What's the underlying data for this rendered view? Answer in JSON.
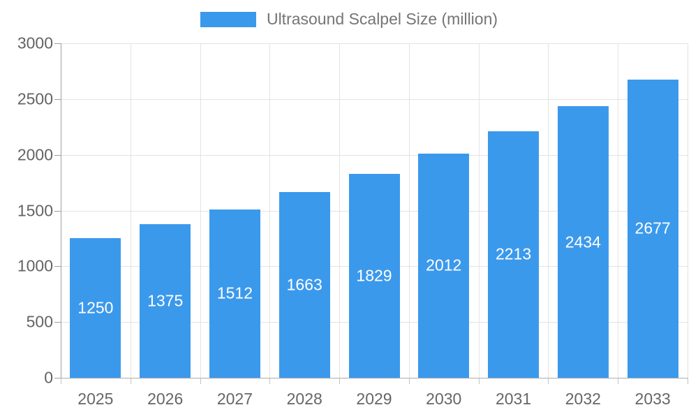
{
  "chart_data": {
    "type": "bar",
    "series_name": "Ultrasound Scalpel Size (million)",
    "categories": [
      "2025",
      "2026",
      "2027",
      "2028",
      "2029",
      "2030",
      "2031",
      "2032",
      "2033"
    ],
    "values": [
      1250,
      1375,
      1512,
      1663,
      1829,
      2012,
      2213,
      2434,
      2677
    ],
    "title": "",
    "xlabel": "",
    "ylabel": "",
    "ylim": [
      0,
      3000
    ],
    "yticks": [
      0,
      500,
      1000,
      1500,
      2000,
      2500,
      3000
    ],
    "grid": true,
    "legend_position": "top-center",
    "bar_label_position": "inside-center"
  },
  "colors": {
    "bar": "#3B99EC",
    "bar_label": "#ffffff",
    "grid": "#e3e3e3",
    "axis": "#9e9e9e",
    "tick_label": "#636363",
    "legend_text": "#757575"
  }
}
